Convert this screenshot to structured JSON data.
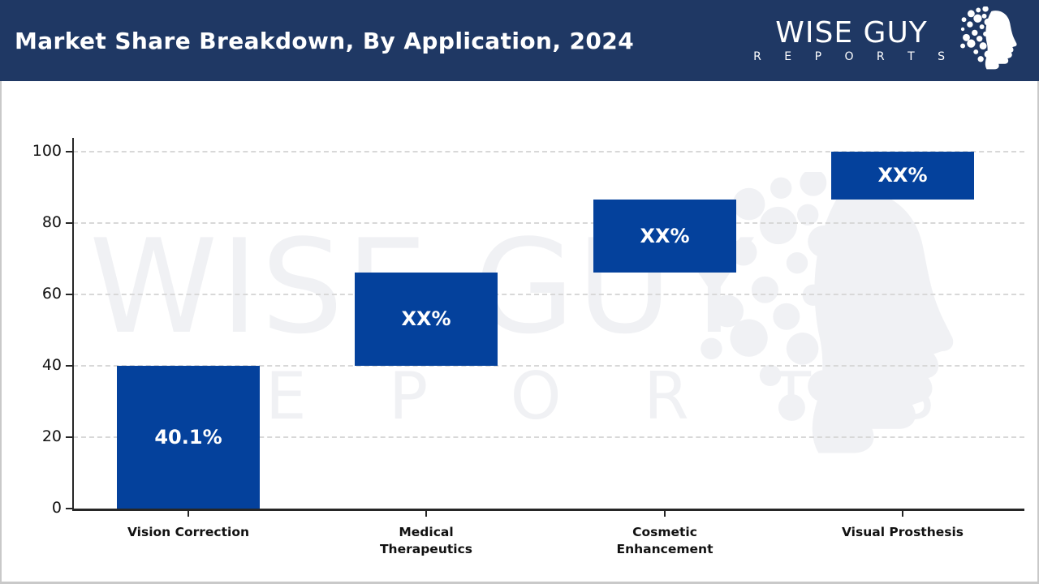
{
  "header": {
    "title": "Market Share Breakdown, By Application, 2024",
    "logo": {
      "line1": "WISE GUY",
      "line2": "R E P O R T S"
    }
  },
  "watermark": {
    "line1": "WISE GUY",
    "line2": "R E P O R T S"
  },
  "chart_data": {
    "type": "bar",
    "variant": "waterfall",
    "title": "Market Share Breakdown, By Application, 2024",
    "categories": [
      "Vision Correction",
      "Medical Therapeutics",
      "Cosmetic Enhancement",
      "Visual Prosthesis"
    ],
    "category_lines": [
      [
        "Vision Correction"
      ],
      [
        "Medical",
        "Therapeutics"
      ],
      [
        "Cosmetic",
        "Enhancement"
      ],
      [
        "Visual Prosthesis"
      ]
    ],
    "segments": [
      {
        "start": 0,
        "end": 40.1,
        "label": "40.1%"
      },
      {
        "start": 40.1,
        "end": 66.1,
        "label": "XX%"
      },
      {
        "start": 66.1,
        "end": 86.6,
        "label": "XX%"
      },
      {
        "start": 86.6,
        "end": 100,
        "label": "XX%"
      }
    ],
    "ylim": [
      0,
      100
    ],
    "yticks": [
      0,
      20,
      40,
      60,
      80,
      100
    ],
    "grid": true,
    "legend": "none",
    "bar_color": "#04419c",
    "bar_label_color": "#ffffff"
  },
  "colors": {
    "header_bg": "#1f3864",
    "background": "#ffffff",
    "gridline": "#d8d8d8",
    "axis": "#262626",
    "watermark": "#f0f1f4"
  }
}
